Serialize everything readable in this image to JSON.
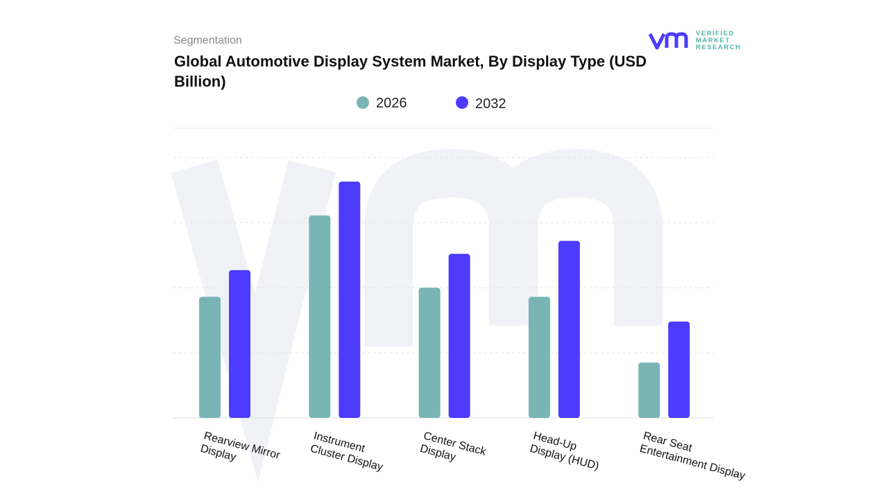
{
  "header": {
    "segment_label": "Segmentation",
    "title": "Global Automotive Display System Market, By Display Type (USD Billion)"
  },
  "logo": {
    "lines": [
      "VERIFIED",
      "MARKET",
      "RESEARCH"
    ]
  },
  "colors": {
    "s2026": "#7ab5b6",
    "s2032": "#4d3bff",
    "grid": "#e3e3e3",
    "watermark": "#f1f2f8"
  },
  "chart_data": {
    "type": "bar",
    "title": "Global Automotive Display System Market, By Display Type (USD Billion)",
    "categories": [
      [
        "Rearview Mirror",
        "Display"
      ],
      [
        "Instrument",
        "Cluster Display"
      ],
      [
        "Center Stack",
        "Display"
      ],
      [
        "Head-Up",
        "Display (HUD)"
      ],
      [
        "Rear Seat",
        "Entertainment Display"
      ]
    ],
    "series": [
      {
        "name": "2026",
        "values": [
          1.86,
          3.11,
          2.0,
          1.86,
          0.85
        ]
      },
      {
        "name": "2032",
        "values": [
          2.27,
          3.63,
          2.52,
          2.72,
          1.48
        ]
      }
    ],
    "ylim": [
      0,
      4.45
    ],
    "y_gridlines": [
      1,
      2,
      3,
      4
    ],
    "y_axis_labels_shown": false,
    "grid": true,
    "legend_placement": "top"
  }
}
